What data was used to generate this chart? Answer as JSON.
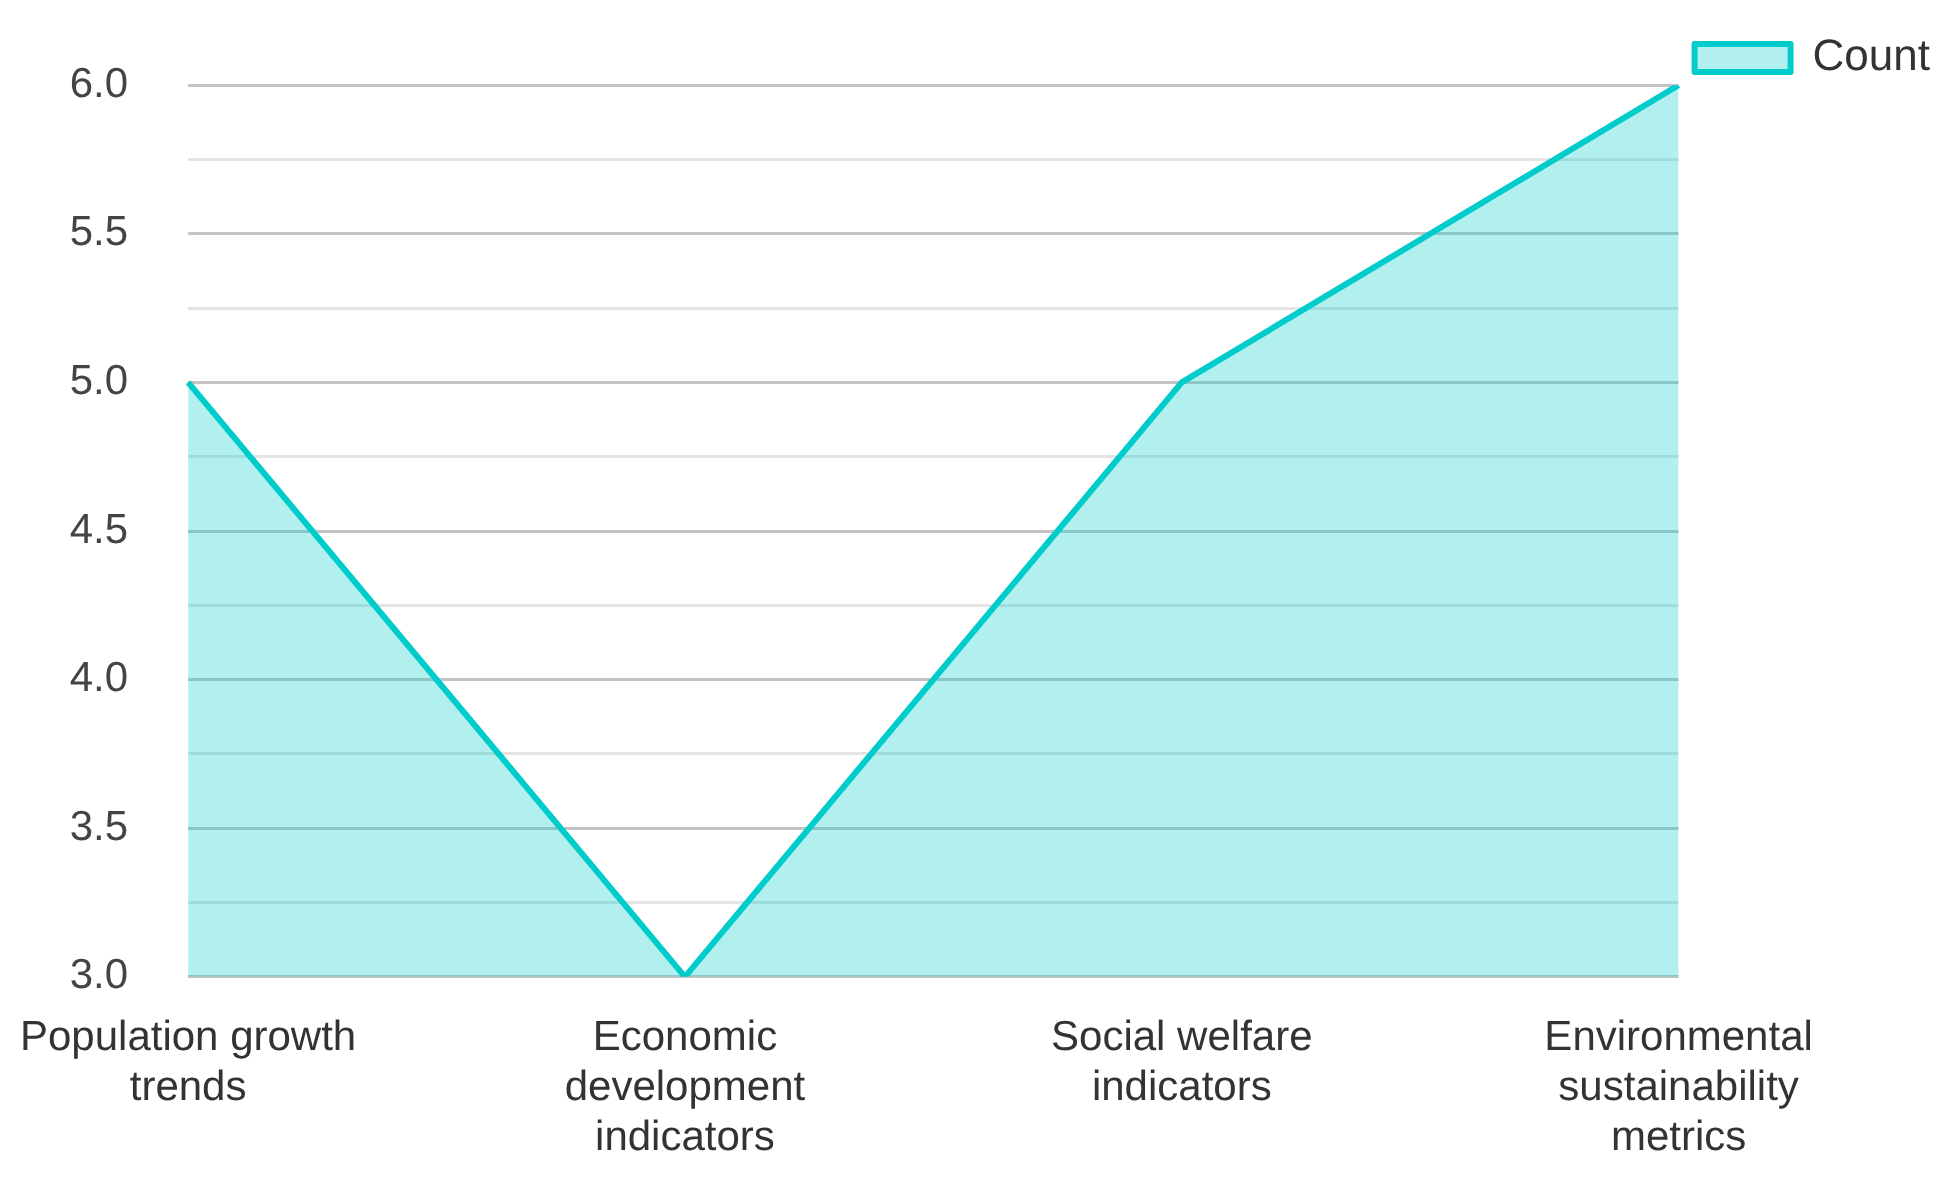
{
  "chart_data": {
    "type": "area",
    "categories": [
      "Population growth trends",
      "Economic development indicators",
      "Social welfare indicators",
      "Environmental sustainability metrics"
    ],
    "series": [
      {
        "name": "Count",
        "color": "#00cccc",
        "values": [
          5,
          3,
          5,
          6
        ]
      }
    ],
    "ylim": [
      3,
      6
    ],
    "yticks": [
      {
        "value": 3,
        "label": "3.0"
      },
      {
        "value": 3.25,
        "label": null
      },
      3.5,
      {
        "value": 3.75,
        "label": null
      },
      {
        "value": 4,
        "label": "4.0"
      },
      {
        "value": 4.25,
        "label": null
      },
      4.5,
      {
        "value": 4.75,
        "label": null
      },
      {
        "value": 5,
        "label": "5.0"
      },
      {
        "value": 5.25,
        "label": null
      },
      5.5,
      {
        "value": 5.75,
        "label": null
      },
      {
        "value": 6,
        "label": "6.0"
      }
    ],
    "grid": "y",
    "legend": "top right",
    "marker": "none"
  }
}
